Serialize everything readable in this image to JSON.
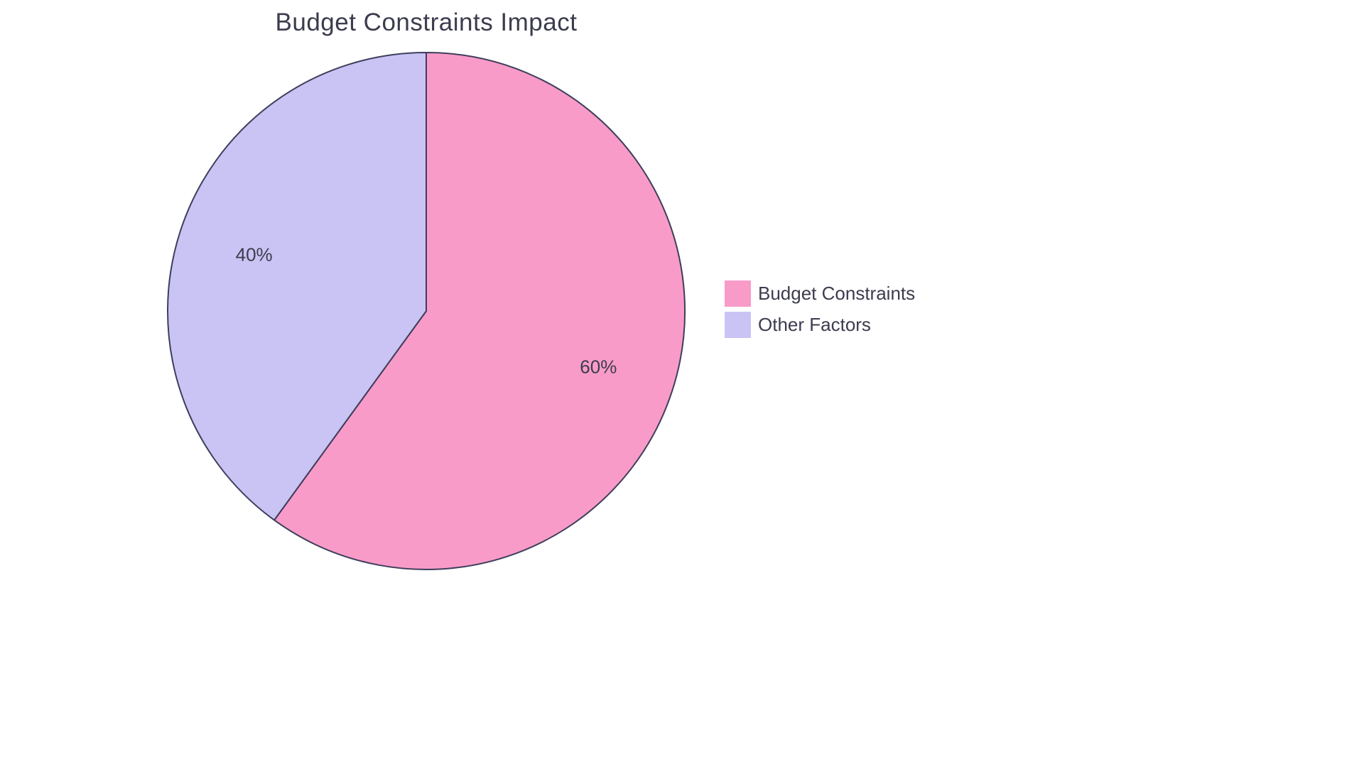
{
  "chart_data": {
    "type": "pie",
    "title": "Budget Constraints Impact",
    "labels": [
      "Budget Constraints",
      "Other Factors"
    ],
    "values": [
      60,
      40
    ],
    "percent_labels": [
      "60%",
      "40%"
    ],
    "colors": [
      "#F99BC9",
      "#C9C4F4"
    ],
    "stroke_color": "#3E3E5B",
    "text_color": "#3C3C4E",
    "background": "#FFFFFF",
    "legend_position": "right",
    "start_angle_deg": -90,
    "direction": "clockwise",
    "label_radius_fraction": 0.7
  }
}
